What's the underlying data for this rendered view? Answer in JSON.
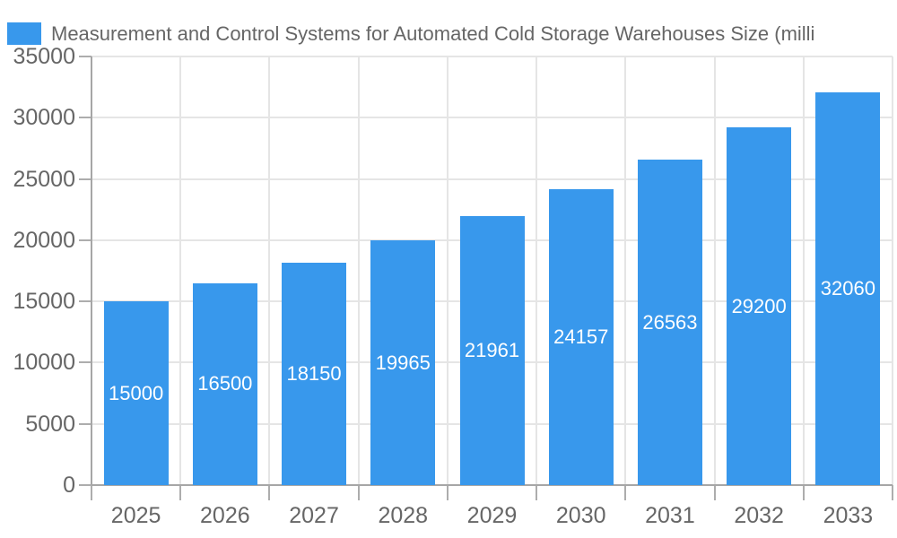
{
  "chart_data": {
    "type": "bar",
    "title": "Measurement and Control Systems for Automated Cold Storage Warehouses Size (milli",
    "categories": [
      "2025",
      "2026",
      "2027",
      "2028",
      "2029",
      "2030",
      "2031",
      "2032",
      "2033"
    ],
    "series": [
      {
        "name": "Measurement and Control Systems for Automated Cold Storage Warehouses Size (milli",
        "values": [
          15000,
          16500,
          18150,
          19965,
          21961,
          24157,
          26563,
          29200,
          32060
        ]
      }
    ],
    "value_labels": [
      15000,
      16500,
      18150,
      19965,
      21961,
      24157,
      26563,
      29200,
      32060
    ],
    "y_ticks": [
      0,
      5000,
      10000,
      15000,
      20000,
      25000,
      30000,
      35000
    ],
    "ylim": [
      0,
      35000
    ],
    "xlabel": "",
    "ylabel": "",
    "grid": true,
    "legend_position": "top-left",
    "value_label_position": "inside-center",
    "colors": {
      "bar": "#3898EC",
      "value_label_text": "#FFFFFF",
      "axis": "#A6A6A6",
      "gridline": "#E5E5E5",
      "tick": "#ADADAD",
      "label_text": "#666666",
      "background": "#FFFFFF"
    }
  }
}
